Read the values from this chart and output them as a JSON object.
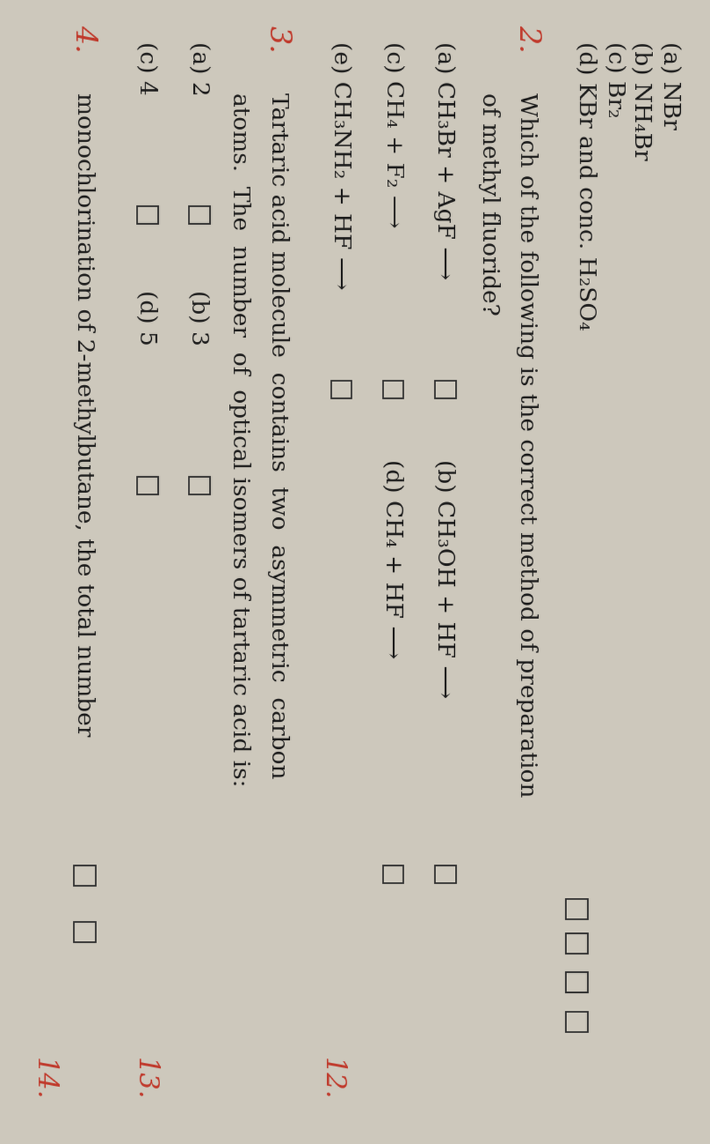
{
  "bg_color": "#cdc8bc",
  "text_color": "#1a1a1a",
  "red_color": "#c0392b",
  "font_size_main": 19,
  "font_size_number": 24,
  "font_size_label": 20,
  "prev_options": [
    "(a) NBr",
    "(b) NH₄Br",
    "(c) Br₂",
    "(d) KBr and conc. H₂SO₄"
  ],
  "q2_stem1": "Which of the following is the correct method of preparation",
  "q2_stem2": "of methyl fluoride?",
  "q2_opts_left": [
    "(a) CH₃Br + AgF ⟶",
    "(c) CH₄ + F₂ ⟶",
    "(e) CH₃NH₂ + HF ⟶"
  ],
  "q2_opts_right": [
    "(b) CH₃OH + HF ⟶",
    "(d) CH₄ + HF ⟶"
  ],
  "q3_stem1": "Tartaric acid molecule  contains  two  asymmetric  carbon",
  "q3_stem2": "atoms.  The  number  of  optical isomers of tartaric acid is:",
  "q3_opts_left": [
    "(a) 2",
    "(c) 4"
  ],
  "q3_opts_right": [
    "(b) 3",
    "(d) 5"
  ],
  "q4_partial": "monochlorination of 2-methylbutane, the total number",
  "label12": "12.",
  "label13": "13.",
  "label14": "14."
}
